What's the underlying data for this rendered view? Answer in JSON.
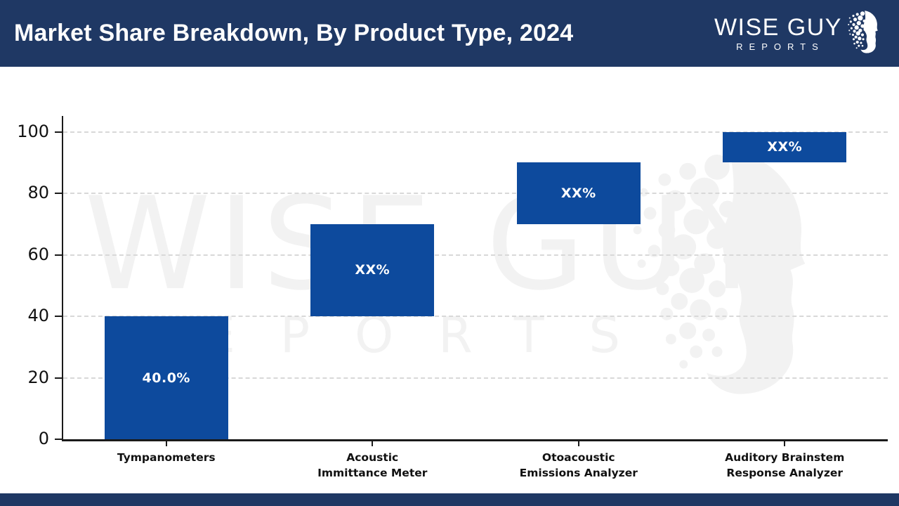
{
  "header": {
    "title": "Market Share Breakdown, By Product Type, 2024",
    "logo": {
      "line1": "WISE GUY",
      "line2": "REPORTS"
    }
  },
  "watermark": {
    "line1": "WISE GUY",
    "line2": "REPORTS"
  },
  "colors": {
    "header_bg": "#1f3864",
    "footer_bg": "#1f3864",
    "bar": "#0d4a9d",
    "bar_label": "#ffffff",
    "grid": "#d8d8d8",
    "axis": "#1a1a1a",
    "tick_label": "#111111",
    "watermark": "#f2f2f2"
  },
  "chart_data": {
    "type": "bar",
    "subtype": "waterfall",
    "title": "Market Share Breakdown, By Product Type, 2024",
    "categories": [
      "Tympanometers",
      "Acoustic\nImmittance Meter",
      "Otoacoustic\nEmissions Analyzer",
      "Auditory Brainstem\nResponse Analyzer"
    ],
    "bars": [
      {
        "category": "Tympanometers",
        "start": 0,
        "end": 40,
        "label": "40.0%"
      },
      {
        "category": "Acoustic Immittance Meter",
        "start": 40,
        "end": 70,
        "label": "XX%"
      },
      {
        "category": "Otoacoustic Emissions Analyzer",
        "start": 70,
        "end": 90,
        "label": "XX%"
      },
      {
        "category": "Auditory Brainstem Response Analyzer",
        "start": 90,
        "end": 100,
        "label": "XX%"
      }
    ],
    "ylim": [
      0,
      100
    ],
    "yticks": [
      0,
      20,
      40,
      60,
      80,
      100
    ],
    "xlabel": "",
    "ylabel": "",
    "grid": "horizontal-dashed",
    "legend": "none"
  }
}
